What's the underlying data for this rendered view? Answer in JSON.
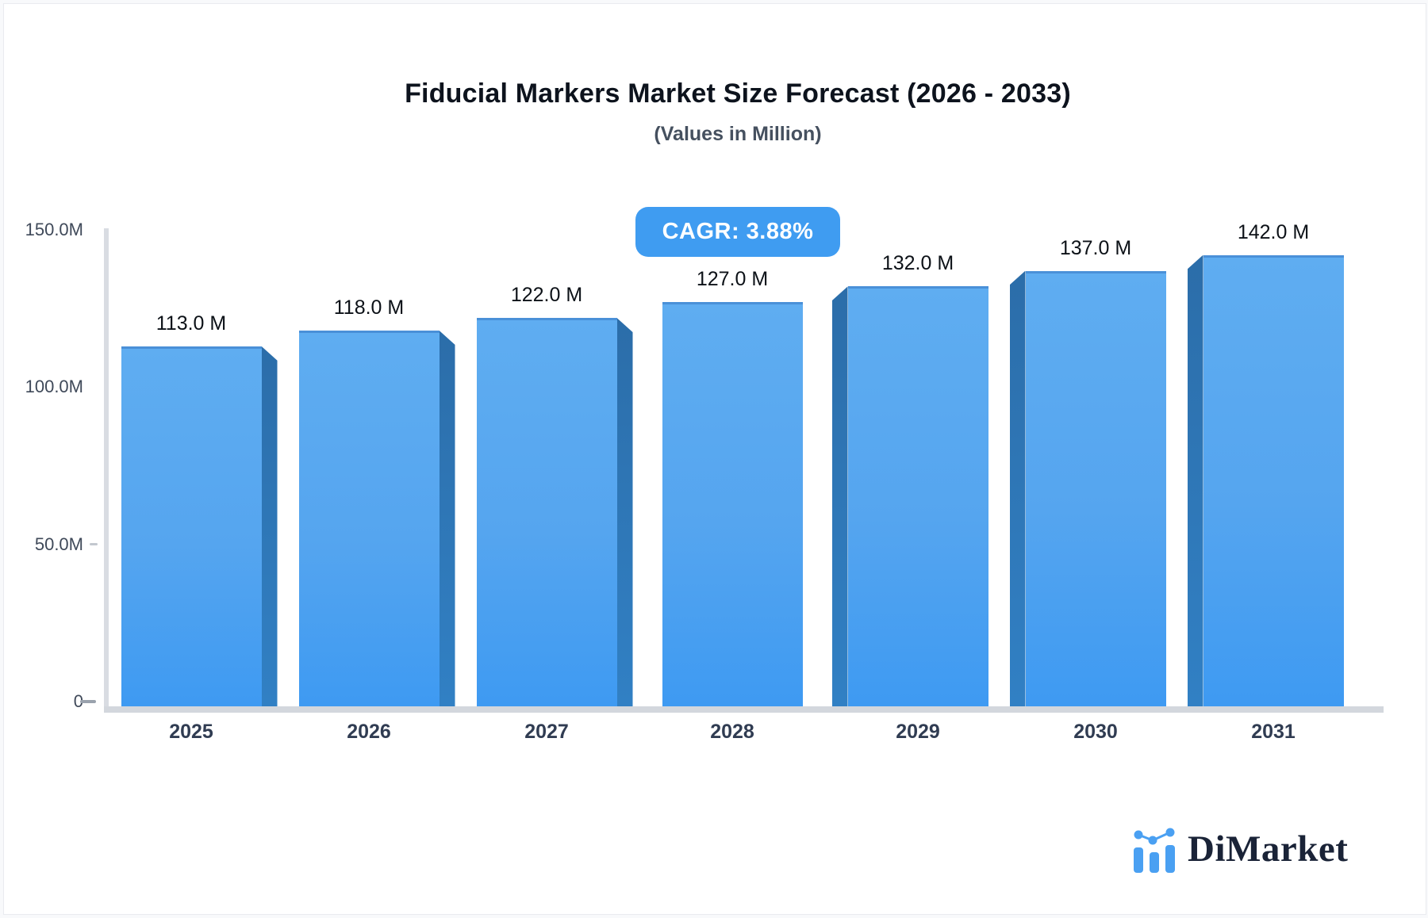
{
  "header": {
    "title": "Fiducial Markers Market Size Forecast (2026 - 2033)",
    "subtitle": "(Values in Million)",
    "cagr_badge": "CAGR: 3.88%"
  },
  "chart_data": {
    "type": "bar",
    "categories": [
      "2025",
      "2026",
      "2027",
      "2028",
      "2029",
      "2030",
      "2031"
    ],
    "values": [
      113,
      118,
      122,
      127,
      132,
      137,
      142
    ],
    "value_labels": [
      "113.0 M",
      "118.0 M",
      "122.0 M",
      "127.0 M",
      "132.0 M",
      "137.0 M",
      "142.0 M"
    ],
    "title": "Fiducial Markers Market Size Forecast (2026 - 2033)",
    "xlabel": "",
    "ylabel": "",
    "ylim": [
      0,
      150
    ],
    "grid": false,
    "y_ticks": [
      {
        "label": "150.0M",
        "value": 150,
        "dash": false
      },
      {
        "label": "100.0M",
        "value": 100,
        "dash": false
      },
      {
        "label": "50.0M",
        "value": 50,
        "dash": true
      },
      {
        "label": "0",
        "value": 0,
        "dash": true
      }
    ]
  },
  "colors": {
    "bar_face": "#55a5ef",
    "bar_side": "#2e75b4",
    "badge_bg": "#3f9cf1",
    "axis_line": "#d9dce2",
    "logo_blue": "#4aa0f2",
    "logo_text": "#1a2337"
  },
  "logo": {
    "text": "DiMarket"
  }
}
